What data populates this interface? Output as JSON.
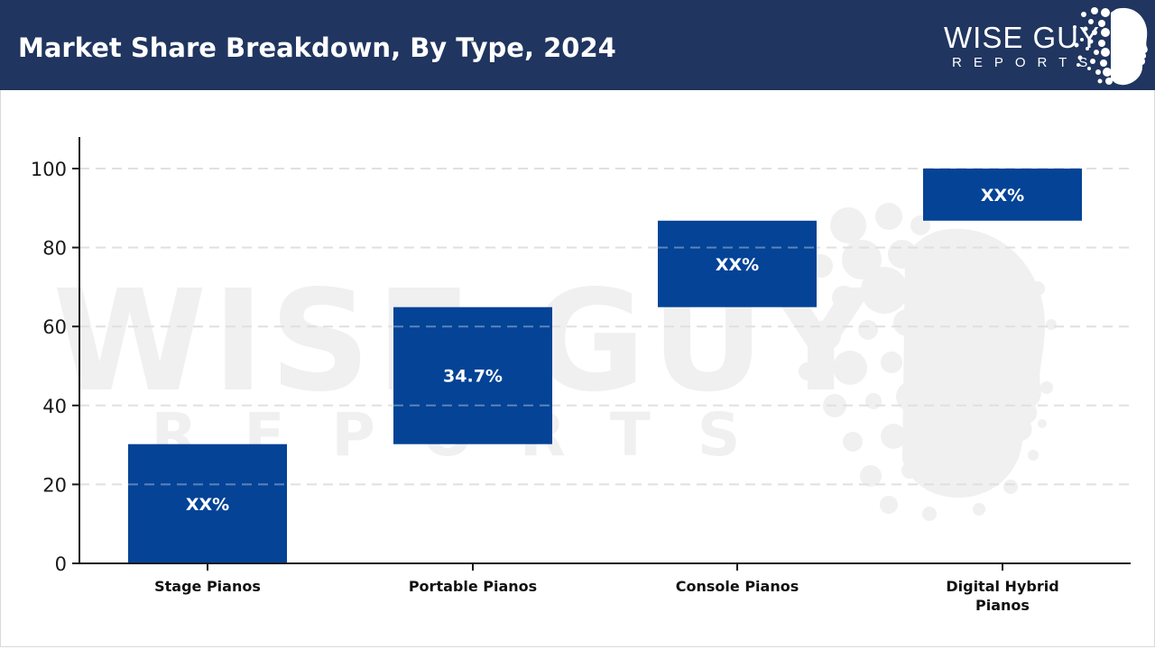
{
  "header": {
    "title": "Market Share Breakdown, By Type, 2024",
    "bg_color": "#20355f",
    "text_color": "#ffffff",
    "logo": {
      "line1": "WISE GUY",
      "line2": "REPORTS",
      "icon": "dotted-face-profile-icon"
    }
  },
  "watermark": {
    "line1": "WISE GUY",
    "line2": "R E P O R T S",
    "icon": "dotted-face-profile-watermark",
    "color": "#f0f0f0"
  },
  "chart_data": {
    "type": "bar",
    "subtype": "floating-segment-waterfall",
    "title": "Market Share Breakdown, By Type, 2024",
    "categories": [
      "Stage Pianos",
      "Portable Pianos",
      "Console Pianos",
      "Digital Hybrid Pianos"
    ],
    "categories_wrapped": [
      [
        "Stage Pianos"
      ],
      [
        "Portable Pianos"
      ],
      [
        "Console Pianos"
      ],
      [
        "Digital Hybrid",
        "Pianos"
      ]
    ],
    "segments": [
      {
        "category": "Stage Pianos",
        "start": 0,
        "end": 30.2,
        "label": "XX%"
      },
      {
        "category": "Portable Pianos",
        "start": 30.2,
        "end": 64.9,
        "label": "34.7%"
      },
      {
        "category": "Console Pianos",
        "start": 64.9,
        "end": 86.8,
        "label": "XX%"
      },
      {
        "category": "Digital Hybrid Pianos",
        "start": 86.8,
        "end": 100,
        "label": "XX%"
      }
    ],
    "bar_color": "#044396",
    "bar_label_color": "#ffffff",
    "ylim": [
      0,
      100
    ],
    "yticks": [
      0,
      20,
      40,
      60,
      80,
      100
    ],
    "ytick_labels": [
      "0",
      "20",
      "40",
      "60",
      "80",
      "100"
    ],
    "grid": "horizontal-dashed",
    "grid_color": "#e0e0e0",
    "axis_color": "#1a1a1a",
    "xlabel": "",
    "ylabel": "",
    "legend": "none"
  }
}
